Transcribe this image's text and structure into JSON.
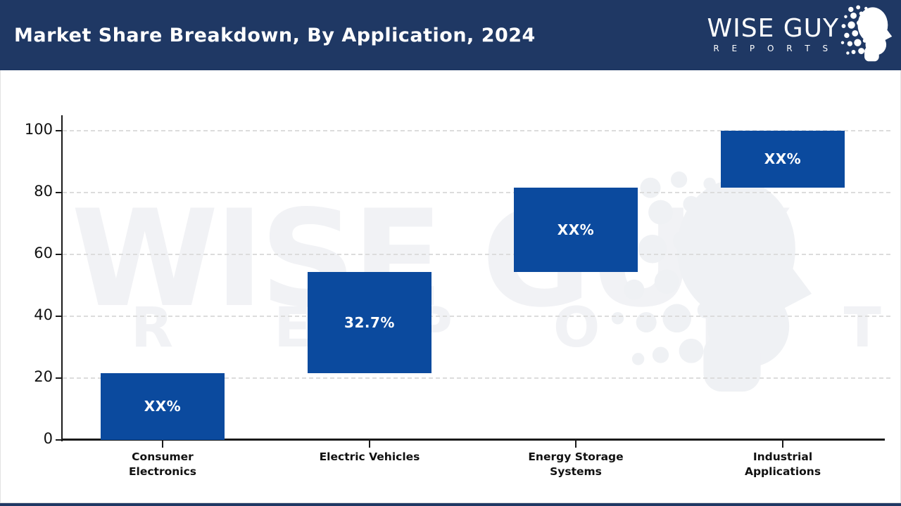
{
  "header": {
    "title": "Market Share Breakdown, By Application, 2024",
    "logo_line1": "WISE GUY",
    "logo_line2": "R E P O R T S"
  },
  "watermark": {
    "line1": "WISE GUY",
    "line2": "R E P O R T S"
  },
  "chart_data": {
    "type": "bar",
    "variant": "waterfall",
    "title": "Market Share Breakdown, By Application, 2024",
    "categories": [
      "Consumer Electronics",
      "Electric Vehicles",
      "Energy Storage Systems",
      "Industrial Applications"
    ],
    "category_label_lines": [
      [
        "Consumer",
        "Electronics"
      ],
      [
        "Electric Vehicles"
      ],
      [
        "Energy Storage",
        "Systems"
      ],
      [
        "Industrial",
        "Applications"
      ]
    ],
    "bars": [
      {
        "category": "Consumer Electronics",
        "label": "XX%",
        "start": 0,
        "end": 21.6
      },
      {
        "category": "Electric Vehicles",
        "label": "32.7%",
        "start": 21.6,
        "end": 54.3
      },
      {
        "category": "Energy Storage Systems",
        "label": "XX%",
        "start": 54.3,
        "end": 81.6
      },
      {
        "category": "Industrial Applications",
        "label": "XX%",
        "start": 81.6,
        "end": 100
      }
    ],
    "xlabel": "",
    "ylabel": "",
    "ylim": [
      0,
      100
    ],
    "yticks": [
      0,
      20,
      40,
      60,
      80,
      100
    ],
    "grid": "horizontal-dashed",
    "legend": "none"
  },
  "colors": {
    "header_bg": "#1f3864",
    "footer_bg": "#1f3864",
    "bar_fill": "#0b4a9e",
    "bar_label_text": "#ffffff",
    "axis": "#1a1a1a",
    "gridline": "#dcdcdc",
    "watermark": "#f1f2f5",
    "page_bg": "#ffffff"
  }
}
